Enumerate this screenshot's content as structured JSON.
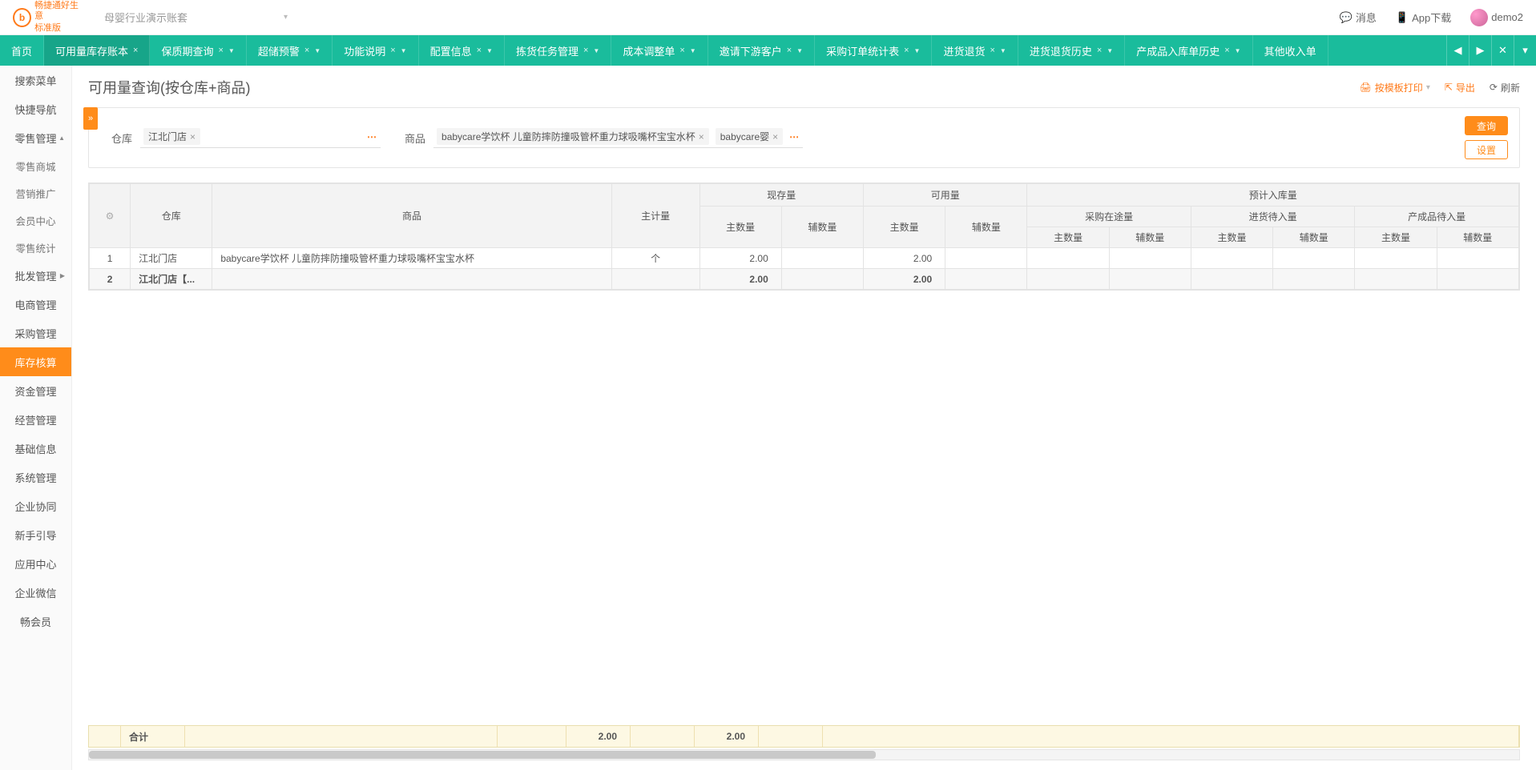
{
  "header": {
    "logo_text": "畅捷通好生意",
    "logo_sub": "标准版",
    "org_name": "母婴行业演示账套",
    "msg": "消息",
    "app": "App下载",
    "user": "demo2"
  },
  "tabs": [
    {
      "label": "首页",
      "closable": false,
      "dd": false,
      "active": false
    },
    {
      "label": "可用量库存账本",
      "closable": true,
      "dd": false,
      "active": true
    },
    {
      "label": "保质期查询",
      "closable": true,
      "dd": true,
      "active": false
    },
    {
      "label": "超储预警",
      "closable": true,
      "dd": true,
      "active": false
    },
    {
      "label": "功能说明",
      "closable": true,
      "dd": true,
      "active": false
    },
    {
      "label": "配置信息",
      "closable": true,
      "dd": true,
      "active": false
    },
    {
      "label": "拣货任务管理",
      "closable": true,
      "dd": true,
      "active": false
    },
    {
      "label": "成本调整单",
      "closable": true,
      "dd": true,
      "active": false
    },
    {
      "label": "邀请下游客户",
      "closable": true,
      "dd": true,
      "active": false
    },
    {
      "label": "采购订单统计表",
      "closable": true,
      "dd": true,
      "active": false
    },
    {
      "label": "进货退货",
      "closable": true,
      "dd": true,
      "active": false
    },
    {
      "label": "进货退货历史",
      "closable": true,
      "dd": true,
      "active": false
    },
    {
      "label": "产成品入库单历史",
      "closable": true,
      "dd": true,
      "active": false
    },
    {
      "label": "其他收入单",
      "closable": false,
      "dd": false,
      "active": false
    }
  ],
  "sidebar": {
    "top": [
      "搜索菜单",
      "快捷导航"
    ],
    "retail": {
      "label": "零售管理",
      "expanded": true,
      "children": [
        "零售商城",
        "营销推广",
        "会员中心",
        "零售统计"
      ]
    },
    "rest": [
      {
        "label": "批发管理",
        "arrow": true
      },
      {
        "label": "电商管理"
      },
      {
        "label": "采购管理"
      },
      {
        "label": "库存核算",
        "active": true
      },
      {
        "label": "资金管理"
      },
      {
        "label": "经营管理"
      },
      {
        "label": "基础信息"
      },
      {
        "label": "系统管理"
      },
      {
        "label": "企业协同"
      },
      {
        "label": "新手引导"
      },
      {
        "label": "应用中心"
      },
      {
        "label": "企业微信"
      },
      {
        "label": "畅会员"
      }
    ]
  },
  "page": {
    "title": "可用量查询(按仓库+商品)",
    "actions": {
      "print": "按模板打印",
      "export": "导出",
      "refresh": "刷新"
    }
  },
  "filter": {
    "warehouse_label": "仓库",
    "warehouse_tags": [
      "江北门店"
    ],
    "product_label": "商品",
    "product_tags": [
      "babycare学饮杯 儿童防摔防撞吸管杯重力球吸嘴杯宝宝水杯",
      "babycare婴"
    ],
    "btn_query": "查询",
    "btn_set": "设置"
  },
  "table": {
    "headers": {
      "gear": "⚙",
      "warehouse": "仓库",
      "product": "商品",
      "main_unit": "主计量",
      "stock": "现存量",
      "avail": "可用量",
      "expected": "预计入库量",
      "purchase": "采购在途量",
      "goods_in": "进货待入量",
      "finished": "产成品待入量",
      "main_qty": "主数量",
      "aux_qty": "辅数量"
    },
    "rows": [
      {
        "idx": "1",
        "warehouse": "江北门店",
        "product": "babycare学饮杯 儿童防摔防撞吸管杯重力球吸嘴杯宝宝水杯",
        "unit": "个",
        "stock_main": "2.00",
        "avail_main": "2.00"
      },
      {
        "idx": "2",
        "warehouse": "江北门店【...",
        "product": "",
        "unit": "",
        "stock_main": "2.00",
        "avail_main": "2.00",
        "subtotal": true
      }
    ],
    "total_label": "合计",
    "total_stock": "2.00",
    "total_avail": "2.00"
  },
  "colors": {
    "primary_green": "#1ABC9C",
    "accent_orange": "#ff8c1a"
  }
}
